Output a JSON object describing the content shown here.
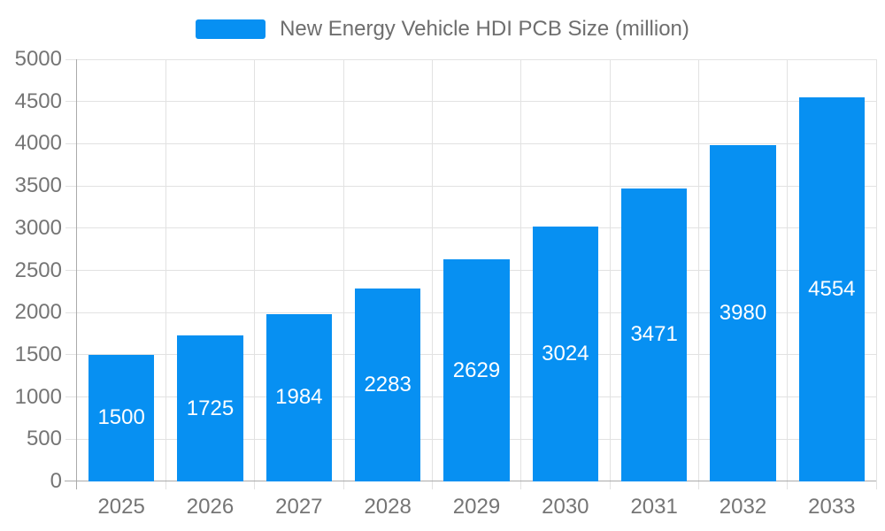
{
  "legend": {
    "label": "New Energy Vehicle HDI PCB Size (million)"
  },
  "chart_data": {
    "type": "bar",
    "title": "New Energy Vehicle HDI PCB Size (million)",
    "series_name": "New Energy Vehicle HDI PCB Size (million)",
    "categories": [
      "2025",
      "2026",
      "2027",
      "2028",
      "2029",
      "2030",
      "2031",
      "2032",
      "2033"
    ],
    "values": [
      1500,
      1725,
      1984,
      2283,
      2629,
      3024,
      3471,
      3980,
      4554
    ],
    "xlabel": "",
    "ylabel": "",
    "ylim": [
      0,
      5000
    ],
    "yticks": [
      0,
      500,
      1000,
      1500,
      2000,
      2500,
      3000,
      3500,
      4000,
      4500,
      5000
    ],
    "grid": true,
    "legend_position": "top-center",
    "value_label_position": "inside-center",
    "colors": {
      "bar": "#0790f2",
      "bar_label": "#ffffff",
      "grid_line": "#e2e2e2",
      "axis_line": "#aaaaaa",
      "axis_text": "#757575",
      "legend_text": "#6e6e6e",
      "background": "#ffffff"
    }
  }
}
